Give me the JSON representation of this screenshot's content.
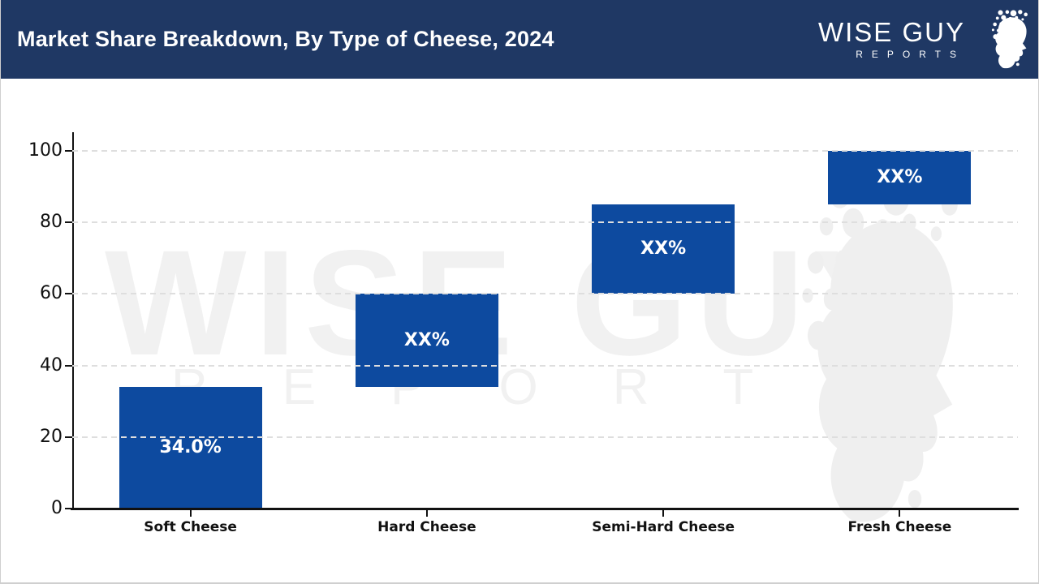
{
  "header": {
    "title": "Market Share Breakdown, By Type of Cheese, 2024",
    "logo": {
      "line1": "WISE GUY",
      "line2": "REPORTS"
    }
  },
  "watermark": {
    "line1": "WISE GUY",
    "line2": "REPORTS"
  },
  "colors": {
    "header_bg": "#1f3864",
    "bar": "#0d4a9f",
    "bar_label": "#ffffff",
    "grid": "#dedede",
    "axis": "#111111",
    "watermark": "#f1f1f1"
  },
  "chart_data": {
    "type": "bar",
    "subtype": "waterfall",
    "title": "Market Share Breakdown, By Type of Cheese, 2024",
    "categories": [
      "Soft Cheese",
      "Hard Cheese",
      "Semi-Hard Cheese",
      "Fresh Cheese"
    ],
    "segments": [
      {
        "category": "Soft Cheese",
        "start": 0,
        "end": 34,
        "label": "34.0%"
      },
      {
        "category": "Hard Cheese",
        "start": 34,
        "end": 60,
        "label": "XX%"
      },
      {
        "category": "Semi-Hard Cheese",
        "start": 60,
        "end": 85,
        "label": "XX%"
      },
      {
        "category": "Fresh Cheese",
        "start": 85,
        "end": 100,
        "label": "XX%"
      }
    ],
    "xlabel": "",
    "ylabel": "",
    "ylim": [
      0,
      100
    ],
    "yticks": [
      0,
      20,
      40,
      60,
      80,
      100
    ],
    "grid": "horizontal-dashed",
    "legend": "none"
  }
}
